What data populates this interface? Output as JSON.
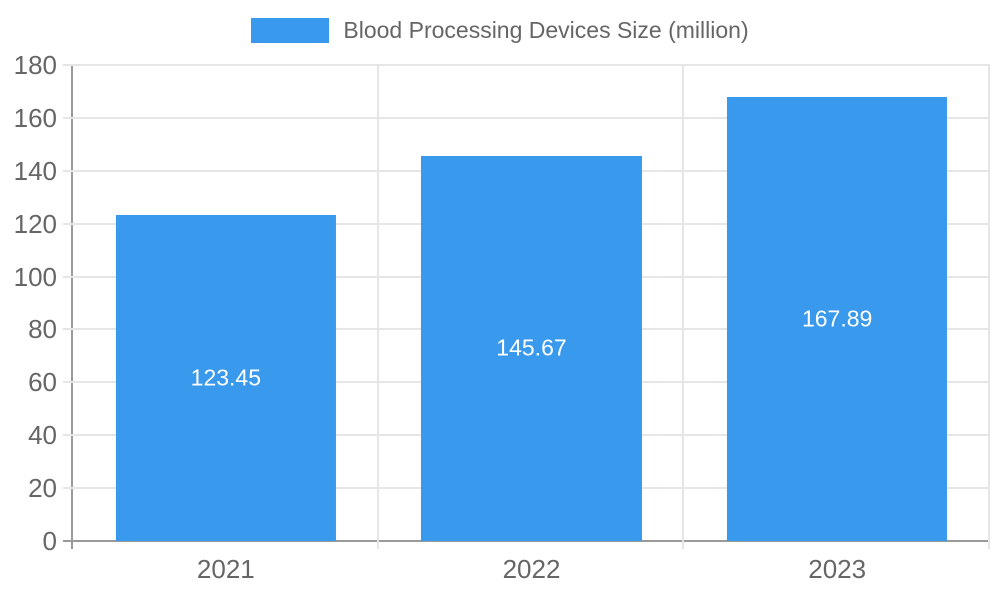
{
  "legend": {
    "label": "Blood Processing Devices Size (million)"
  },
  "colors": {
    "bar": "#3999ec",
    "grid": "#e6e6e6",
    "axis": "#9a9a9a",
    "tick_text": "#666666",
    "bar_label_text": "#ffffff",
    "background": "#ffffff"
  },
  "chart_data": {
    "type": "bar",
    "title": "Blood Processing Devices Size (million)",
    "categories": [
      "2021",
      "2022",
      "2023"
    ],
    "values": [
      123.45,
      145.67,
      167.89
    ],
    "value_labels": [
      "123.45",
      "145.67",
      "167.89"
    ],
    "xlabel": "",
    "ylabel": "",
    "ylim": [
      0,
      180
    ],
    "ytick_step": 20,
    "yticks": [
      0,
      20,
      40,
      60,
      80,
      100,
      120,
      140,
      160,
      180
    ],
    "ytick_labels": [
      "0",
      "20",
      "40",
      "60",
      "80",
      "100",
      "120",
      "140",
      "160",
      "180"
    ],
    "grid": true,
    "legend_position": "top",
    "bar_label_position": "center"
  }
}
